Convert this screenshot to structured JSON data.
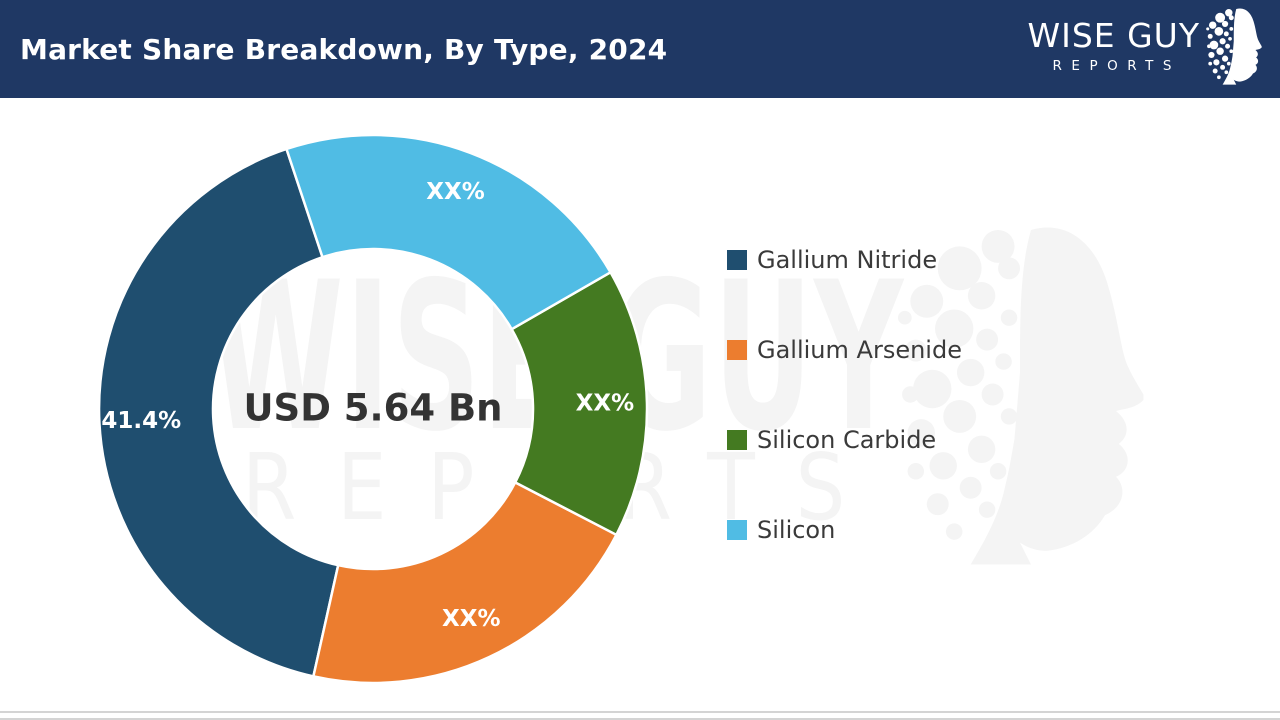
{
  "header": {
    "title": "Market Share Breakdown, By Type, 2024",
    "logo": {
      "line1": "WISE GUY",
      "line2": "REPORTS"
    }
  },
  "watermark": {
    "line1": "WISE GUY",
    "line2": "REPORTS"
  },
  "chart_data": {
    "type": "pie",
    "subtype": "donut",
    "title": "Market Share Breakdown, By Type, 2024",
    "center_label": "USD 5.64 Bn",
    "start_angle_deg": 108.4,
    "direction": "counterclockwise",
    "legend_position": "right",
    "slices": [
      {
        "name": "Gallium Nitride",
        "value": 41.4,
        "label": "41.4%",
        "color": "#1f4e6f"
      },
      {
        "name": "Gallium Arsenide",
        "value": 20.9,
        "label": "XX%",
        "color": "#ec7d2f"
      },
      {
        "name": "Silicon Carbide",
        "value": 15.9,
        "label": "XX%",
        "color": "#447a21"
      },
      {
        "name": "Silicon",
        "value": 21.8,
        "label": "XX%",
        "color": "#50bce4"
      }
    ]
  },
  "colors": {
    "header_bg": "#1f3864",
    "slice_label_text": "#ffffff",
    "center_text": "#333333",
    "legend_text": "#3a3a3a",
    "watermark": "#f4f4f4",
    "bottom_line": "#d4d4d4"
  }
}
